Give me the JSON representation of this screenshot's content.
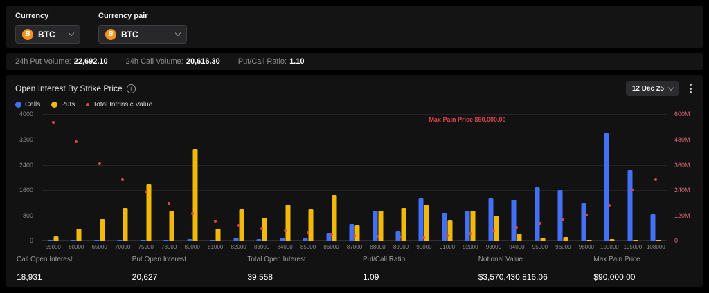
{
  "filters": {
    "currency_label": "Currency",
    "currency_value": "BTC",
    "pair_label": "Currency pair",
    "pair_value": "BTC",
    "coin_icon": "btc-icon",
    "coin_color": "#f7931a"
  },
  "volume_bar": {
    "put_volume_label": "24h Put Volume:",
    "put_volume_value": "22,692.10",
    "call_volume_label": "24h Call Volume:",
    "call_volume_value": "20,616.30",
    "ratio_label": "Put/Call Ratio:",
    "ratio_value": "1.10"
  },
  "panel": {
    "title": "Open Interest By Strike Price",
    "date_selector": "12 Dec 25"
  },
  "legend": [
    {
      "label": "Calls",
      "color": "#4470f4"
    },
    {
      "label": "Puts",
      "color": "#f0b90b"
    },
    {
      "label": "Total Intrinsic Value",
      "color": "#d9464d"
    }
  ],
  "chart_data": {
    "type": "bar",
    "title": "Open Interest By Strike Price",
    "categories": [
      "55000",
      "60000",
      "65000",
      "70000",
      "75000",
      "78000",
      "80000",
      "81000",
      "82000",
      "83000",
      "84000",
      "85000",
      "86000",
      "87000",
      "88000",
      "89000",
      "90000",
      "91000",
      "92000",
      "93000",
      "94000",
      "95000",
      "96000",
      "98000",
      "100000",
      "105000",
      "108000"
    ],
    "series": [
      {
        "name": "Calls",
        "color": "#4470f4",
        "values": [
          10,
          40,
          25,
          35,
          45,
          35,
          60,
          25,
          110,
          55,
          110,
          85,
          260,
          550,
          950,
          310,
          1350,
          900,
          950,
          1350,
          1300,
          1700,
          1600,
          1200,
          3400,
          2250,
          850
        ]
      },
      {
        "name": "Puts",
        "color": "#f0b90b",
        "values": [
          150,
          400,
          700,
          1050,
          1800,
          950,
          2900,
          400,
          1000,
          750,
          1150,
          1000,
          1450,
          500,
          950,
          1050,
          1150,
          650,
          950,
          800,
          250,
          100,
          120,
          50,
          60,
          40,
          30
        ]
      },
      {
        "name": "Total Intrinsic Value",
        "type": "scatter",
        "axis": "right",
        "color": "#d9464d",
        "values_million": [
          560,
          470,
          365,
          290,
          230,
          175,
          130,
          95,
          75,
          60,
          50,
          40,
          32,
          26,
          22,
          18,
          15,
          25,
          35,
          50,
          65,
          85,
          100,
          125,
          170,
          240,
          290
        ]
      }
    ],
    "y_left": {
      "ticks": [
        0,
        800,
        1600,
        2400,
        3200,
        4000
      ],
      "max": 4000,
      "color": "#8a8a8a"
    },
    "y_right": {
      "ticks": [
        "0",
        "120M",
        "240M",
        "360M",
        "480M",
        "600M"
      ],
      "max_million": 600,
      "color": "#d9696e"
    },
    "grid": true,
    "legend_position": "top-left",
    "max_pain": {
      "strike": "90000",
      "label": "Max Pain Price $90,000.00",
      "color": "#d9464d"
    }
  },
  "footer_stats": [
    {
      "label": "Call Open Interest",
      "value": "18,931",
      "color": "#4470f4"
    },
    {
      "label": "Put Open Interest",
      "value": "20,627",
      "color": "#f0b90b"
    },
    {
      "label": "Total Open Interest",
      "value": "39,558",
      "color": "#6f7f9e"
    },
    {
      "label": "Put/Call Ratio",
      "value": "1.09",
      "color": "#4470f4"
    },
    {
      "label": "Notional Value",
      "value": "$3,570,430,816.06",
      "color": "#666a72"
    },
    {
      "label": "Max Pain Price",
      "value": "$90,000.00",
      "color": "#d9464d"
    }
  ]
}
